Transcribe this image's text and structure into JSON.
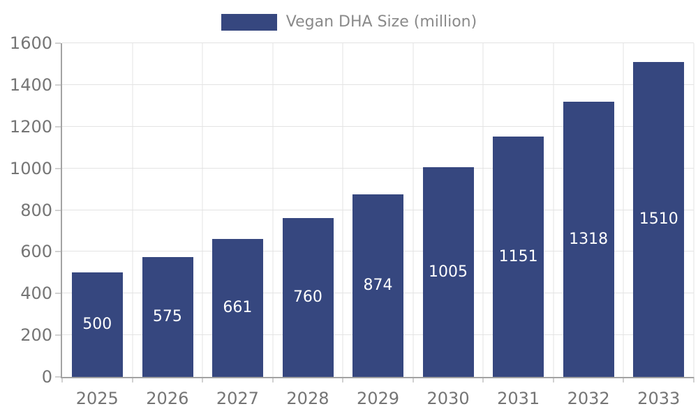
{
  "chart": {
    "legend_label": "Vegan DHA Size (million)",
    "colors": {
      "bar": "#36477f",
      "bar_label": "#ffffff",
      "axis_line": "#a3a3a3",
      "grid_line": "#e3e3e3",
      "axis_text": "#757575",
      "legend_text": "#8a8a8a",
      "background": "#ffffff"
    }
  },
  "chart_data": {
    "type": "bar",
    "title": "",
    "series_name": "Vegan DHA Size (million)",
    "categories": [
      "2025",
      "2026",
      "2027",
      "2028",
      "2029",
      "2030",
      "2031",
      "2032",
      "2033"
    ],
    "values": [
      500,
      575,
      661,
      760,
      874,
      1005,
      1151,
      1318,
      1510
    ],
    "xlabel": "",
    "ylabel": "",
    "ylim": [
      0,
      1600
    ],
    "ytick_step": 200,
    "yticks": [
      0,
      200,
      400,
      600,
      800,
      1000,
      1200,
      1400,
      1600
    ],
    "grid": true,
    "legend_position": "top-center",
    "bar_label_position": "inside-middle"
  }
}
